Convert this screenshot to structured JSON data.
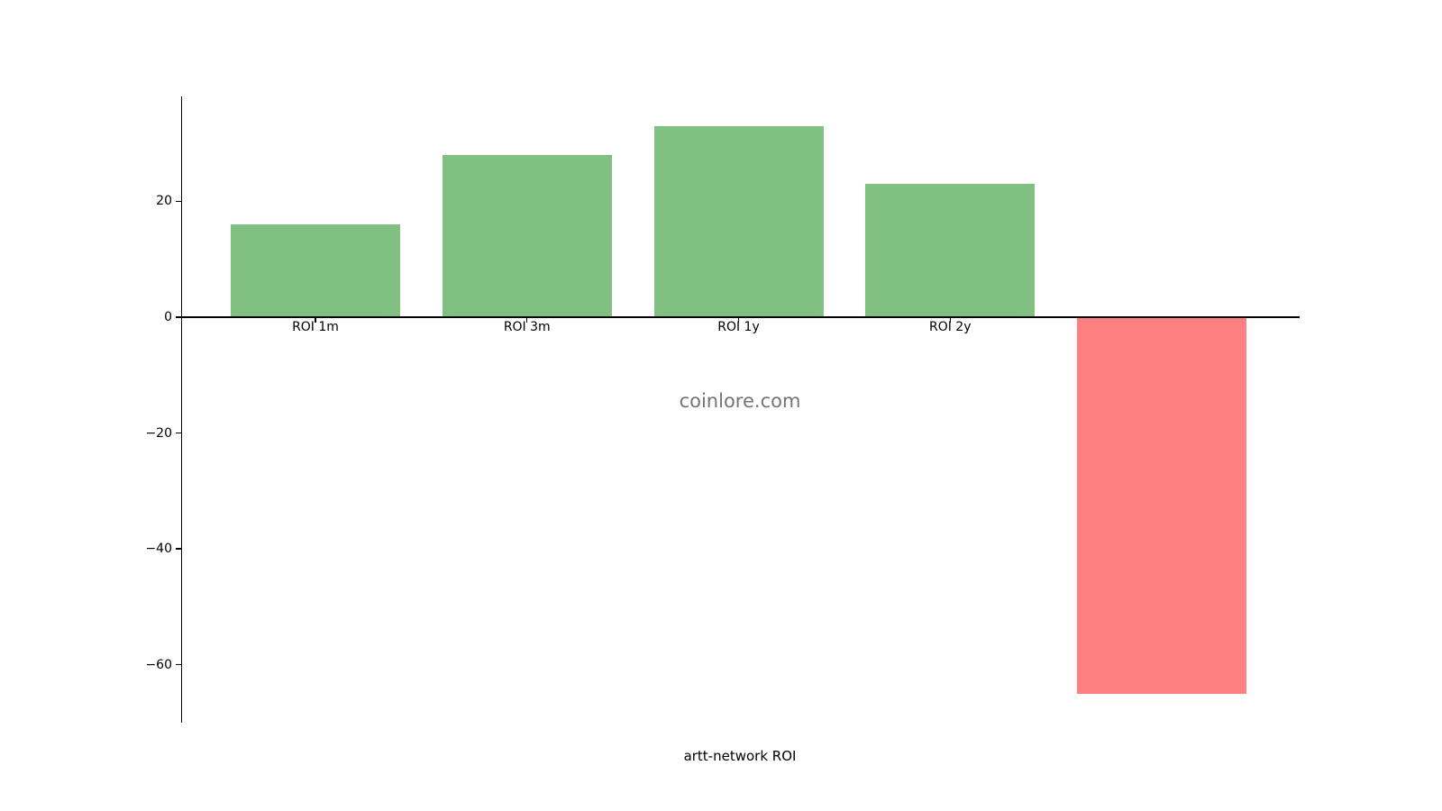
{
  "figure": {
    "background": "#ffffff"
  },
  "watermark": {
    "text": "coinlore.com",
    "color": "#757575"
  },
  "chart_data": {
    "type": "bar",
    "title": "",
    "xlabel": "artt-network ROI",
    "ylabel": "",
    "categories": [
      "ROI 1m",
      "ROI 3m",
      "ROI 1y",
      "ROI 2y",
      ""
    ],
    "values": [
      16,
      28,
      33,
      23,
      -65
    ],
    "series": [
      {
        "name": "artt-network ROI",
        "values": [
          16,
          28,
          33,
          23,
          -65
        ]
      }
    ],
    "bar_color_positive": "#80c080",
    "bar_color_negative": "#ff8080",
    "ylim": [
      -70,
      38
    ],
    "yticks": [
      20,
      0,
      -20,
      -40,
      -60
    ],
    "ytick_labels": [
      "20",
      "0",
      "−20",
      "−40",
      "−60"
    ],
    "xtick_labels_visible": [
      "ROI 1m",
      "ROI 3m",
      "ROI 1y",
      "ROI 2y"
    ],
    "grid": false,
    "legend": "none",
    "axis_color": "#000000",
    "tick_label_color": "#000000",
    "watermark": "coinlore.com",
    "zero_baseline": true
  }
}
